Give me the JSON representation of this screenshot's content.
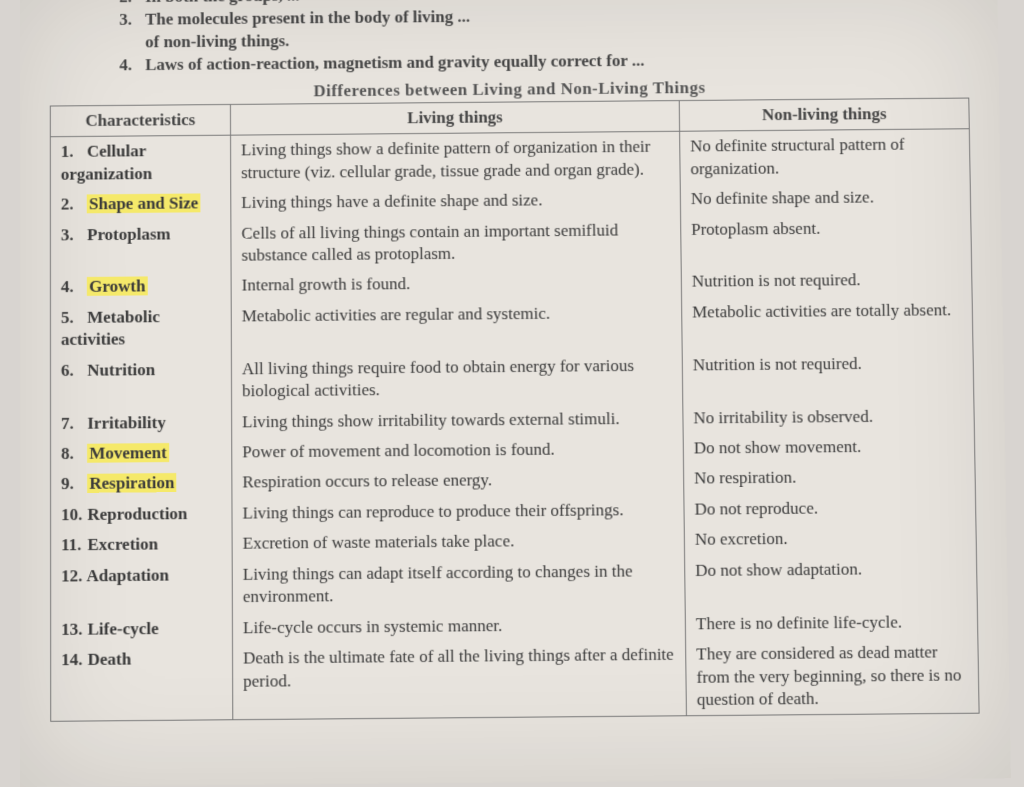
{
  "preList": {
    "item2": "In both the groups, ...",
    "item3a": "The molecules present in the body of living ...",
    "item3b": "of non-living things.",
    "item4": "Laws of action-reaction, magnetism and gravity equally correct for ..."
  },
  "tableTitle": "Differences between Living and Non-Living Things",
  "headers": {
    "c1": "Characteristics",
    "c2": "Living things",
    "c3": "Non-living things"
  },
  "rows": [
    {
      "n": "1.",
      "label": "Cellular organization",
      "living": "Living things show a definite pattern of organization in their structure (viz. cellular grade, tissue grade and organ grade).",
      "nonliving": "No definite structural pattern of organization.",
      "hl": false
    },
    {
      "n": "2.",
      "label": "Shape and Size",
      "living": "Living things have a definite shape and size.",
      "nonliving": "No definite shape and size.",
      "hl": true
    },
    {
      "n": "3.",
      "label": "Protoplasm",
      "living": "Cells of all living things contain an important semifluid substance called as protoplasm.",
      "nonliving": "Protoplasm absent.",
      "hl": false
    },
    {
      "n": "4.",
      "label": "Growth",
      "living": "Internal growth is found.",
      "nonliving": "Nutrition is not required.",
      "hl": true
    },
    {
      "n": "5.",
      "label": "Metabolic activities",
      "living": "Metabolic activities are regular and systemic.",
      "nonliving": "Metabolic activities are totally absent.",
      "hl": false
    },
    {
      "n": "6.",
      "label": "Nutrition",
      "living": "All living things require food to obtain energy for various biological activities.",
      "nonliving": "Nutrition is not required.",
      "hl": false
    },
    {
      "n": "7.",
      "label": "Irritability",
      "living": "Living things show irritability towards external stimuli.",
      "nonliving": "No irritability is observed.",
      "hl": false
    },
    {
      "n": "8.",
      "label": "Movement",
      "living": "Power of movement and locomotion is found.",
      "nonliving": "Do not show movement.",
      "hl": true
    },
    {
      "n": "9.",
      "label": "Respiration",
      "living": "Respiration occurs to release energy.",
      "nonliving": "No respiration.",
      "hl": true
    },
    {
      "n": "10.",
      "label": "Reproduction",
      "living": "Living things can reproduce to produce their offsprings.",
      "nonliving": "Do not reproduce.",
      "hl": false
    },
    {
      "n": "11.",
      "label": "Excretion",
      "living": "Excretion of waste materials take place.",
      "nonliving": "No excretion.",
      "hl": false
    },
    {
      "n": "12.",
      "label": "Adaptation",
      "living": "Living things can adapt itself according to changes in the environment.",
      "nonliving": "Do not show adaptation.",
      "hl": false
    },
    {
      "n": "13.",
      "label": "Life-cycle",
      "living": "Life-cycle occurs in systemic manner.",
      "nonliving": "There is no definite life-cycle.",
      "hl": false
    },
    {
      "n": "14.",
      "label": "Death",
      "living": "Death is the ultimate fate of all the living things after a definite period.",
      "nonliving": "They are considered as dead matter from the very beginning, so there is no question of death.",
      "hl": false
    }
  ]
}
